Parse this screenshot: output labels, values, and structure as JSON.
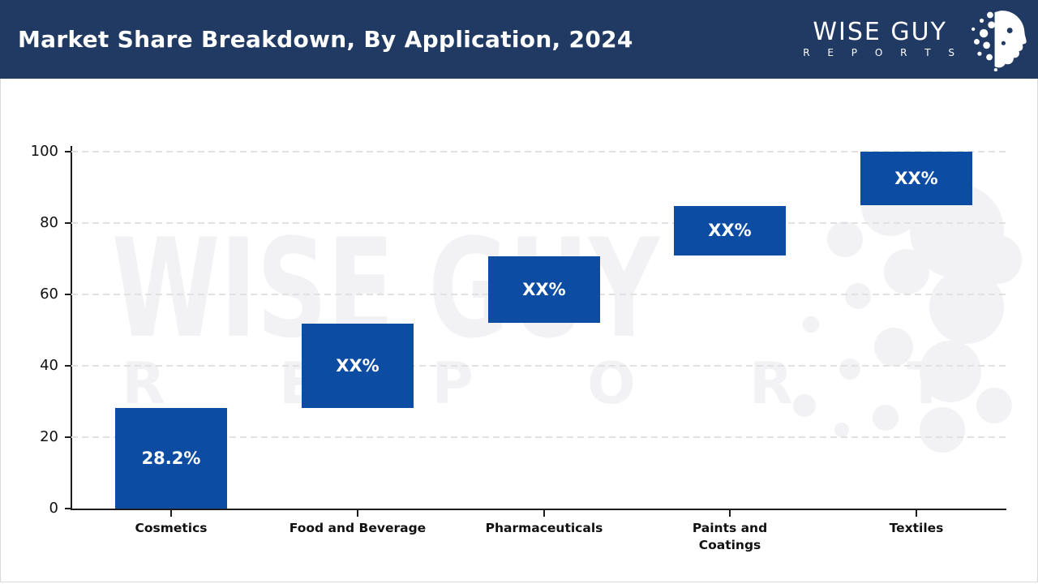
{
  "header": {
    "title": "Market Share Breakdown, By Application, 2024",
    "logo_line1": "WISE GUY",
    "logo_line2": "R E P O R T S"
  },
  "watermark": {
    "line1": "WISE GUY",
    "line2": "R E P O R T S"
  },
  "colors": {
    "header_bg": "#213a64",
    "bar": "#0d4ca3",
    "bar_label": "#ffffff",
    "axis": "#1c1c1c",
    "grid": "#e1e1e1",
    "tick_label": "#111111",
    "watermark": "#f2f2f4"
  },
  "chart_data": {
    "type": "bar",
    "subtype": "waterfall-floating-bars",
    "title": "Market Share Breakdown, By Application, 2024",
    "xlabel": "",
    "ylabel": "",
    "ylim": [
      0,
      101
    ],
    "yticks": [
      0,
      20,
      40,
      60,
      80,
      100
    ],
    "grid": "horizontal dashed",
    "legend": "none",
    "categories": [
      "Cosmetics",
      "Food and Beverage",
      "Pharmaceuticals",
      "Paints and\nCoatings",
      "Textiles"
    ],
    "bars": [
      {
        "category": "Cosmetics",
        "start": 0.0,
        "end": 28.2,
        "label": "28.2%"
      },
      {
        "category": "Food and Beverage",
        "start": 28.2,
        "end": 51.8,
        "label": "XX%"
      },
      {
        "category": "Pharmaceuticals",
        "start": 52.0,
        "end": 70.7,
        "label": "XX%"
      },
      {
        "category": "Paints and\nCoatings",
        "start": 71.0,
        "end": 84.8,
        "label": "XX%"
      },
      {
        "category": "Textiles",
        "start": 84.9,
        "end": 100.0,
        "label": "XX%"
      }
    ]
  }
}
